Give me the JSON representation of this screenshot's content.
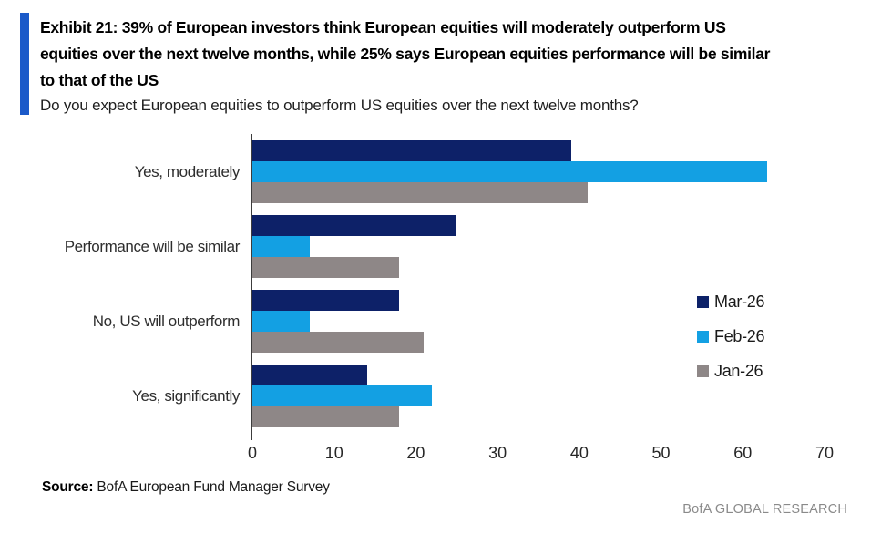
{
  "header": {
    "exhibit_accent_color": "#1b5ac9",
    "title_lines": [
      "Exhibit 21: 39% of European investors think European equities will moderately outperform US",
      "equities over the next twelve months, while 25% says European equities performance will be similar",
      "to that of the US"
    ],
    "title_full": "Exhibit 21: 39% of European investors think European equities will moderately outperform US equities over the next twelve months, while 25% says European equities performance will be similar to that of the US",
    "subtitle": "Do you expect European equities to outperform US equities over the next twelve months?"
  },
  "chart_data": {
    "type": "bar",
    "orientation": "horizontal",
    "title": "Do you expect European equities to outperform US equities over the next twelve months?",
    "categories": [
      "Yes, moderately",
      "Performance will be similar",
      "No, US will outperform",
      "Yes, significantly"
    ],
    "series": [
      {
        "name": "Mar-26",
        "color": "#0d2168",
        "values": [
          39,
          25,
          18,
          14
        ]
      },
      {
        "name": "Feb-26",
        "color": "#13a0e3",
        "values": [
          63,
          7,
          7,
          22
        ]
      },
      {
        "name": "Jan-26",
        "color": "#8e8787",
        "values": [
          41,
          18,
          21,
          18
        ]
      }
    ],
    "xlabel": "",
    "ylabel": "",
    "xlim": [
      0,
      70
    ],
    "xticks": [
      0,
      10,
      20,
      30,
      40,
      50,
      60,
      70
    ],
    "grid": false,
    "legend_position": "right"
  },
  "footer": {
    "source_label": "Source:",
    "source_text": "BofA European Fund Manager Survey",
    "brand": "BofA GLOBAL RESEARCH"
  }
}
